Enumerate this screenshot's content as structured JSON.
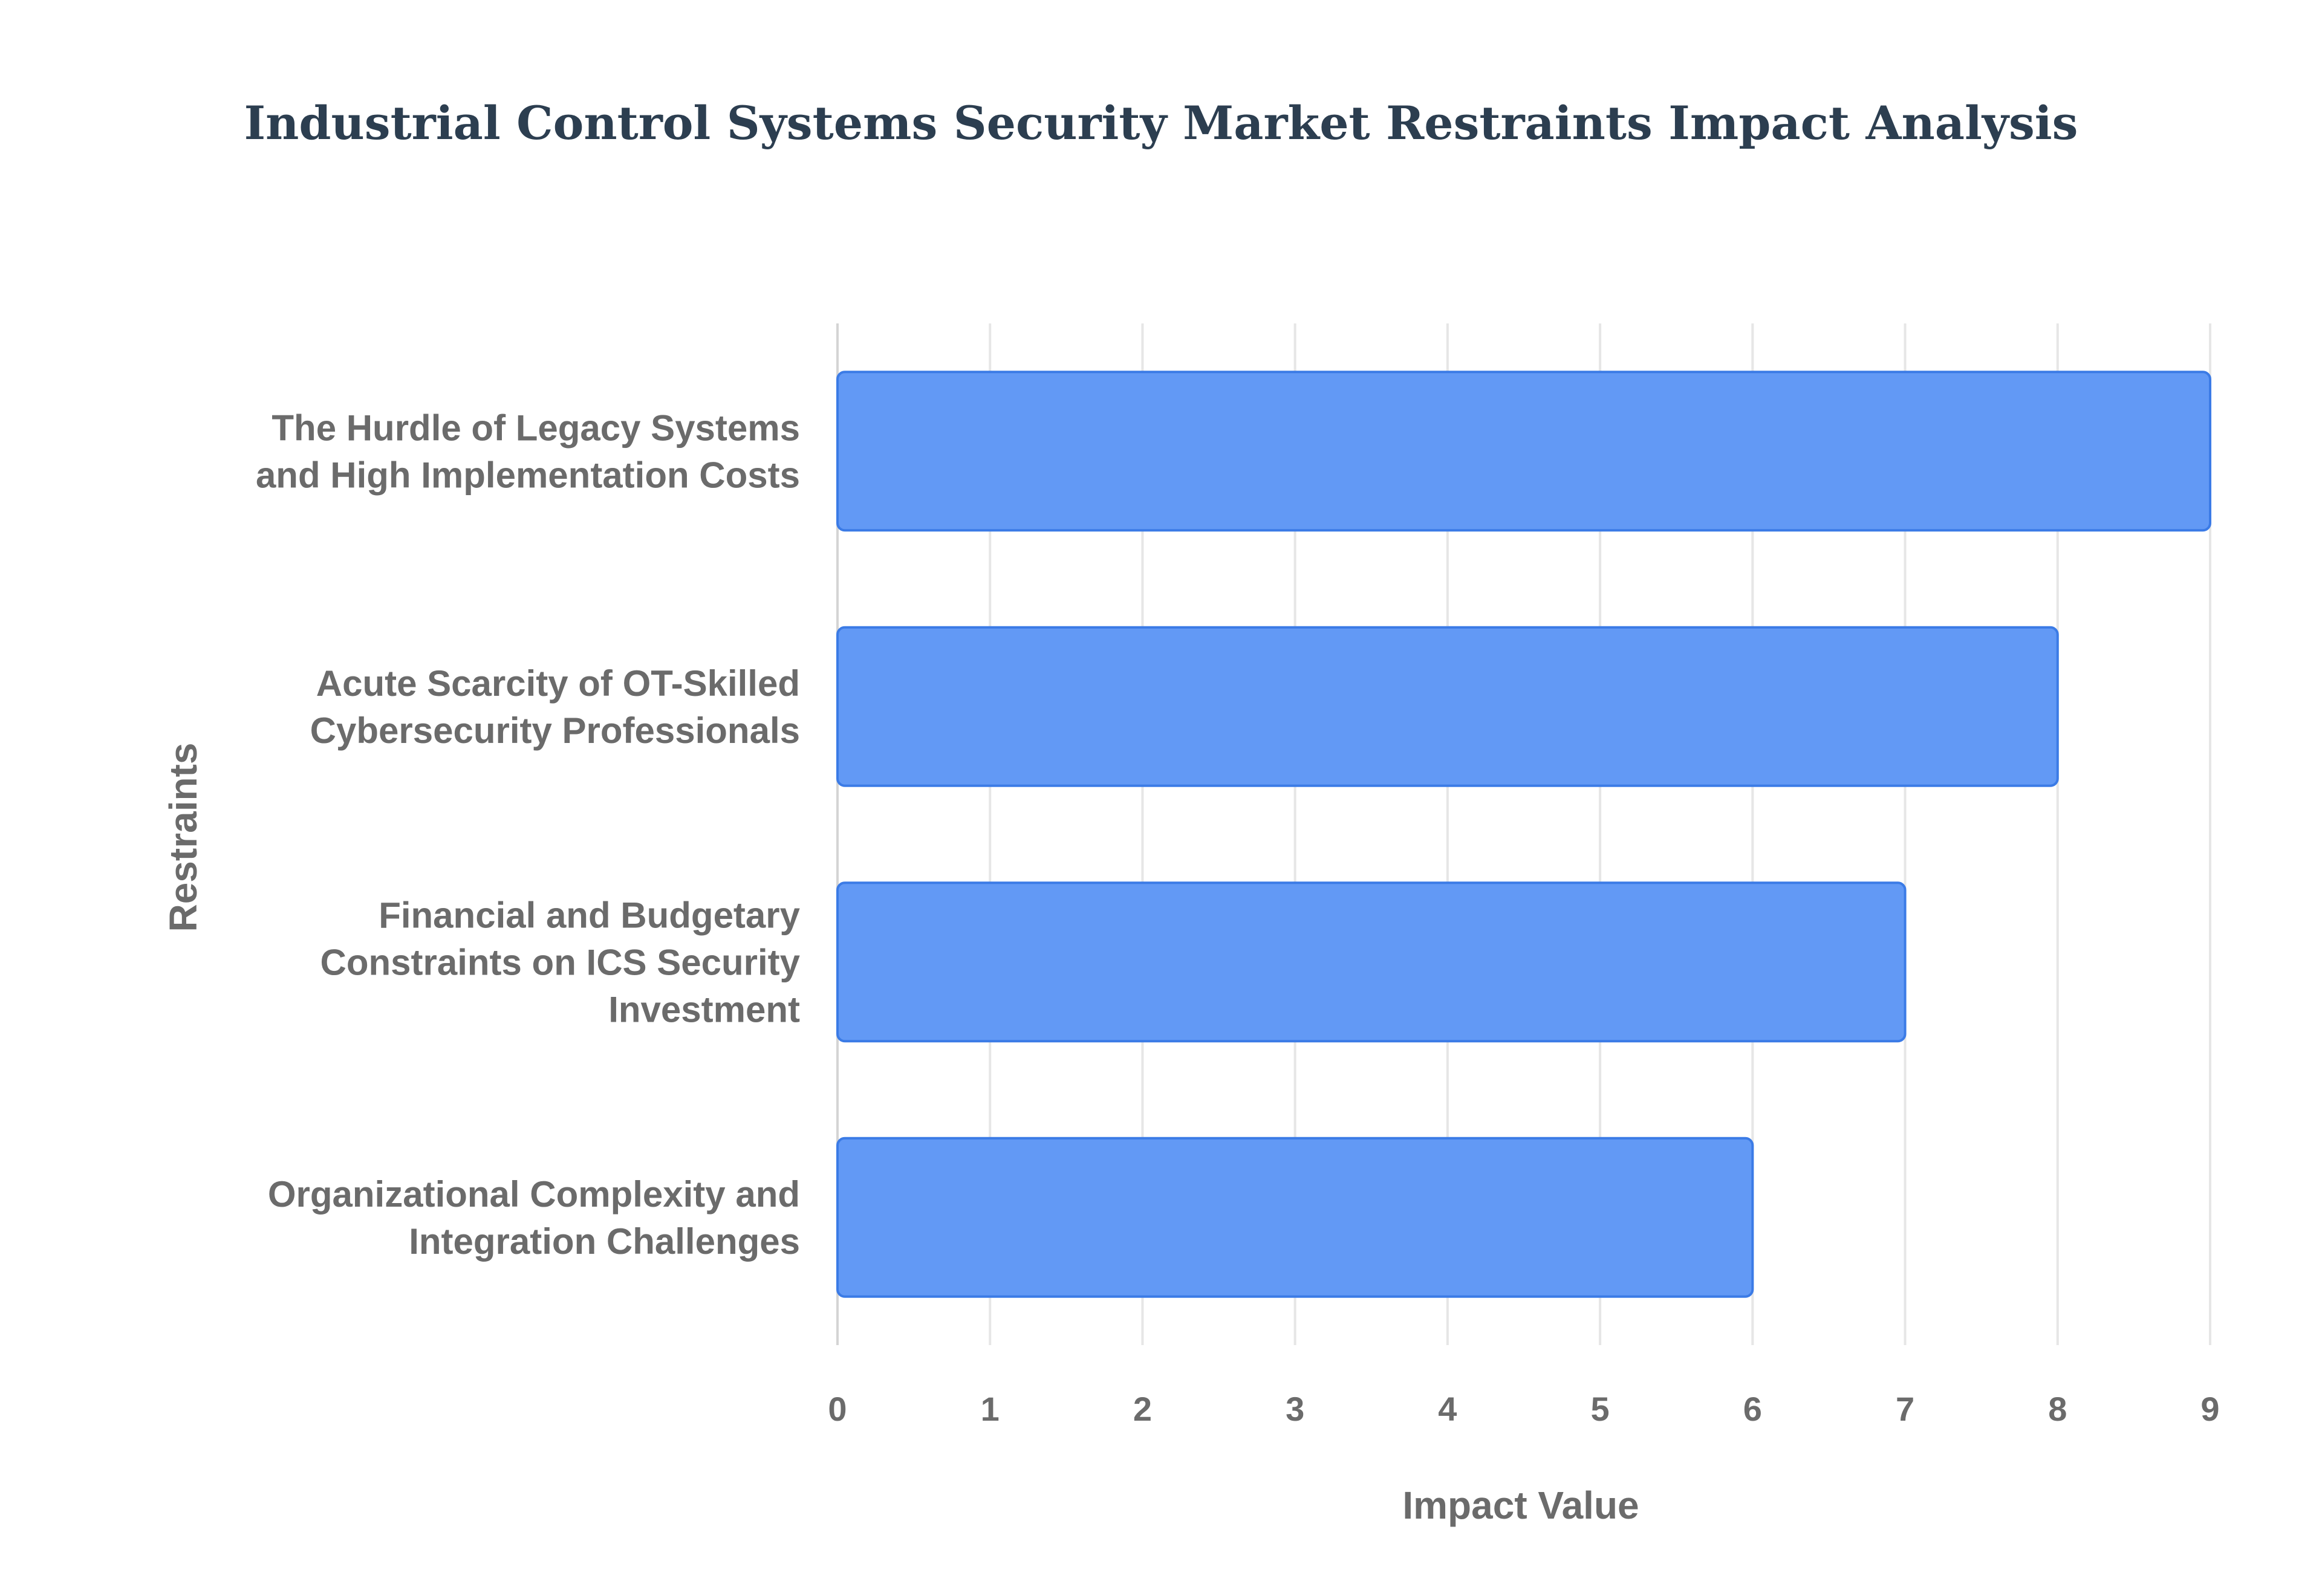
{
  "colors": {
    "bar_fill": "#6299f5",
    "bar_stroke": "#3b7be6",
    "title": "#2c3e50",
    "label": "#6b6b6b",
    "grid": "#e6e6e6",
    "axis": "#d4d4d4"
  },
  "chart_data": {
    "type": "bar",
    "orientation": "horizontal",
    "title": "Industrial Control Systems Security Market Restraints Impact Analysis",
    "xlabel": "Impact Value",
    "ylabel": "Restraints",
    "xlim": [
      0,
      9
    ],
    "xticks": [
      0,
      1,
      2,
      3,
      4,
      5,
      6,
      7,
      8,
      9
    ],
    "grid": true,
    "legend": "none",
    "categories": [
      [
        "The Hurdle of Legacy Systems",
        "and High Implementation Costs"
      ],
      [
        "Acute Scarcity of OT-Skilled",
        "Cybersecurity Professionals"
      ],
      [
        "Financial and Budgetary",
        "Constraints on ICS Security",
        "Investment"
      ],
      [
        "Organizational Complexity and",
        "Integration Challenges"
      ]
    ],
    "values": [
      9,
      8,
      7,
      6
    ]
  }
}
